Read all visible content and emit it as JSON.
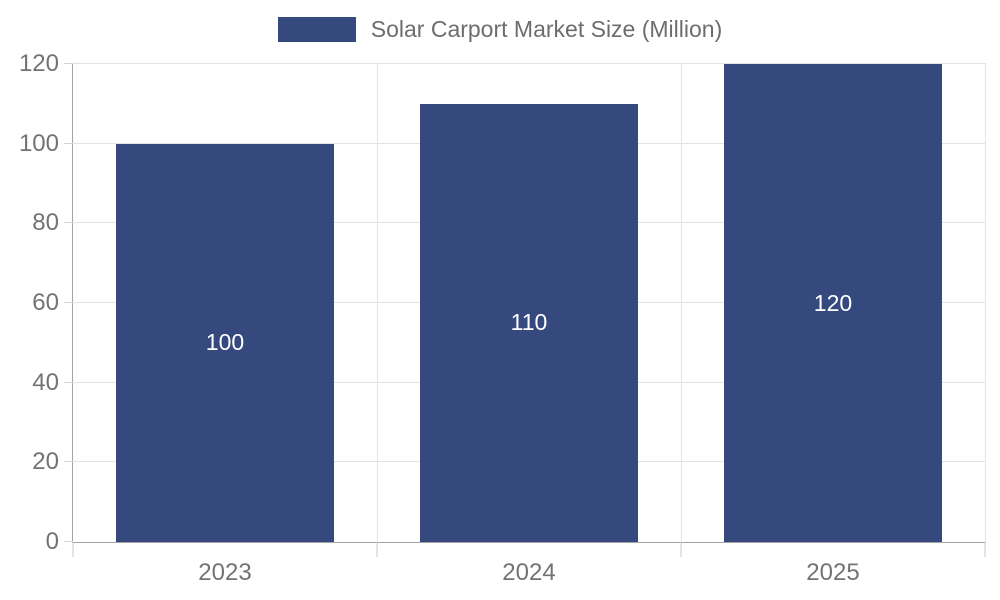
{
  "chart_data": {
    "type": "bar",
    "title": "Solar Carport Market Size (Million)",
    "categories": [
      "2023",
      "2024",
      "2025"
    ],
    "values": [
      100,
      110,
      120
    ],
    "series": [
      {
        "name": "Solar Carport Market Size (Million)",
        "values": [
          100,
          110,
          120
        ]
      }
    ],
    "xlabel": "",
    "ylabel": "",
    "ylim": [
      0,
      120
    ],
    "yticks": [
      0,
      20,
      40,
      60,
      80,
      100,
      120
    ],
    "grid": true,
    "legend_position": "top-center",
    "bar_color": "#35497F",
    "value_label_color": "#FFFFFF",
    "axis_color": "#a3a3a3",
    "grid_color": "#e3e3e3",
    "tick_label_color": "#737373",
    "bar_width_fraction": 0.72
  }
}
